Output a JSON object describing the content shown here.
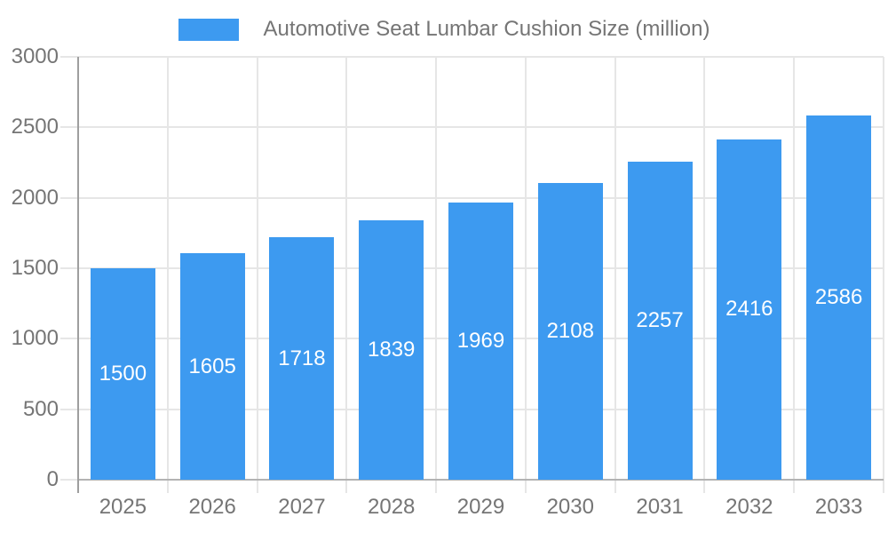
{
  "chart_data": {
    "type": "bar",
    "title": "Automotive Seat Lumbar Cushion Size (million)",
    "categories": [
      "2025",
      "2026",
      "2027",
      "2028",
      "2029",
      "2030",
      "2031",
      "2032",
      "2033"
    ],
    "series": [
      {
        "name": "Automotive Seat Lumbar Cushion Size (million)",
        "values": [
          1500,
          1605,
          1718,
          1839,
          1969,
          2108,
          2257,
          2416,
          2586
        ]
      }
    ],
    "xlabel": "",
    "ylabel": "",
    "ylim": [
      0,
      3000
    ],
    "yticks": [
      0,
      500,
      1000,
      1500,
      2000,
      2500,
      3000
    ],
    "grid": "on",
    "legend_position": "top",
    "bar_labels_inside": true,
    "colors": {
      "bar": "#3d9af0",
      "bar_label_text": "#ffffff",
      "axis_text": "#757575",
      "gridline": "#e6e6e6",
      "zero_line": "#b3b3b3",
      "axis_line": "#9e9e9e",
      "background": "#ffffff"
    }
  }
}
